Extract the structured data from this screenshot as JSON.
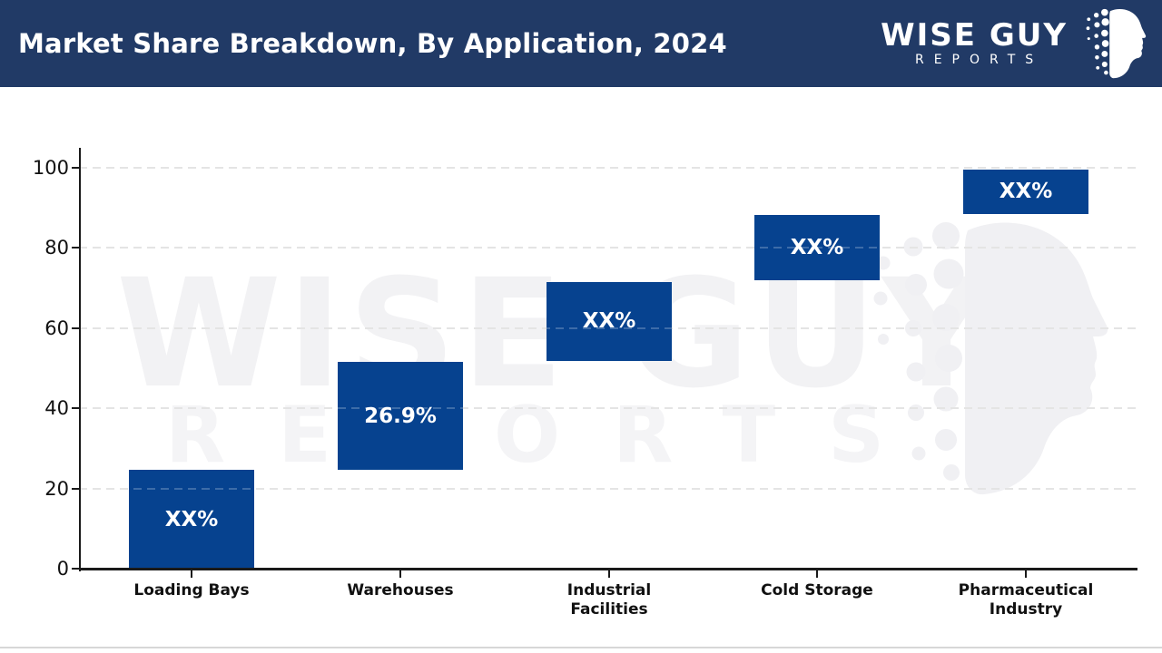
{
  "header": {
    "title": "Market Share Breakdown, By Application, 2024",
    "logo": {
      "brand": "WISE GUY",
      "sub": "REPORTS"
    }
  },
  "watermark": {
    "line1": "WISE GUY",
    "line2": "REPORTS"
  },
  "colors": {
    "header_bg": "#213a66",
    "bar": "#06428f",
    "bar_label": "#ffffff",
    "gridline": "#dcdcdc",
    "axis": "#1a1a1a",
    "watermark": "#f2f2f4"
  },
  "chart_data": {
    "type": "bar",
    "subtype": "floating-waterfall",
    "title": "Market Share Breakdown, By Application, 2024",
    "categories": [
      "Loading Bays",
      "Warehouses",
      "Industrial Facilities",
      "Cold Storage",
      "Pharmaceutical Industry"
    ],
    "segments": [
      {
        "category": "Loading Bays",
        "start": 0,
        "end": 24.6,
        "label": "XX%"
      },
      {
        "category": "Warehouses",
        "start": 24.6,
        "end": 51.5,
        "label": "26.9%",
        "value": 26.9
      },
      {
        "category": "Industrial Facilities",
        "start": 51.7,
        "end": 71.6,
        "label": "XX%"
      },
      {
        "category": "Cold Storage",
        "start": 71.9,
        "end": 88.2,
        "label": "XX%"
      },
      {
        "category": "Pharmaceutical Industry",
        "start": 88.5,
        "end": 99.6,
        "label": "XX%"
      }
    ],
    "estimated_segment_heights": [
      24.6,
      26.9,
      19.9,
      16.3,
      11.1
    ],
    "yticks": [
      0,
      20,
      40,
      60,
      80,
      100
    ],
    "ylim": [
      0,
      105
    ],
    "grid": "dashed-horizontal",
    "legend": "none",
    "xlabel": "",
    "ylabel": ""
  }
}
